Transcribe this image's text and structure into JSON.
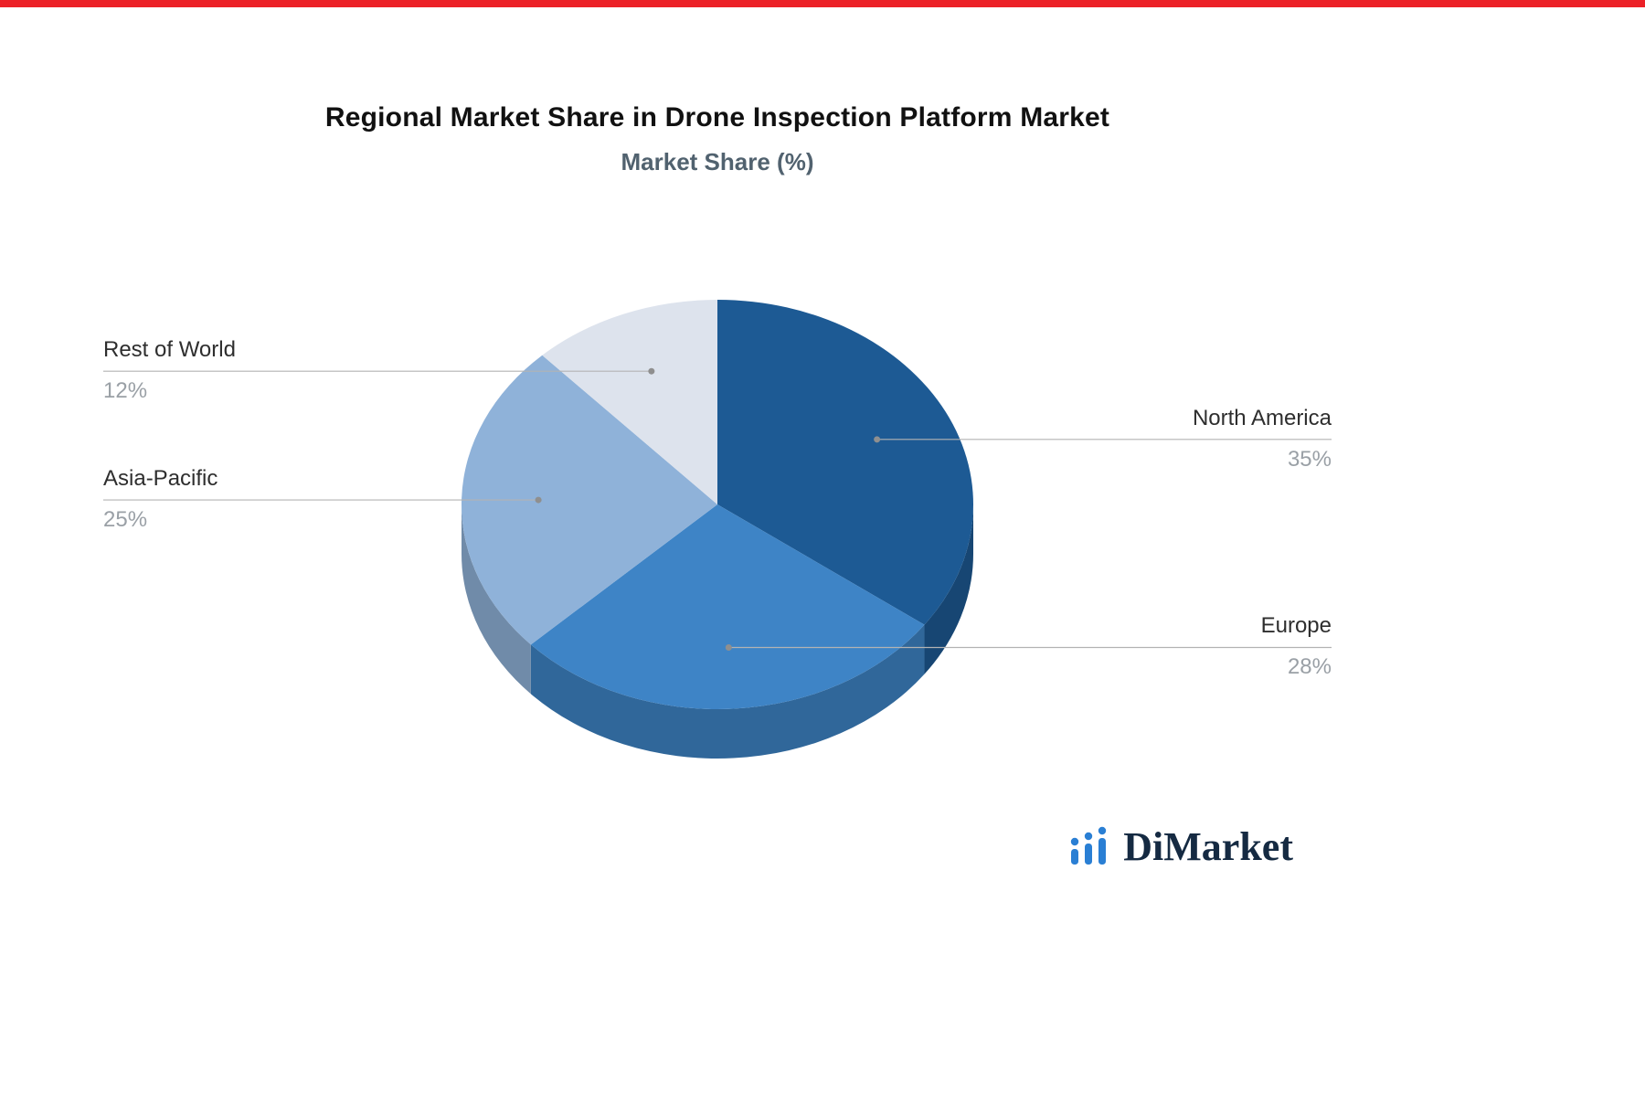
{
  "page": {
    "top_bar_color": "#ec2127",
    "background_color": "#ffffff"
  },
  "header": {
    "title": "Regional Market Share in Drone Inspection Platform Market",
    "subtitle": "Market Share (%)"
  },
  "chart_data": {
    "type": "pie",
    "title": "Regional Market Share in Drone Inspection Platform Market",
    "subtitle": "Market Share (%)",
    "legend_position": "none",
    "style": "3d-pie-with-depth",
    "callout_line_color": "#b3b3b3",
    "callout_label_color": "#2e2e2e",
    "callout_value_color": "#9aa0a6",
    "slices": [
      {
        "label": "North America",
        "value": 35,
        "display": "35%",
        "color": "#1d5a94"
      },
      {
        "label": "Europe",
        "value": 28,
        "display": "28%",
        "color": "#3e84c6"
      },
      {
        "label": "Asia-Pacific",
        "value": 25,
        "display": "25%",
        "color": "#8fb2d9"
      },
      {
        "label": "Rest of World",
        "value": 12,
        "display": "12%",
        "color": "#dde3ed"
      }
    ],
    "start_angle_deg": 0,
    "direction": "clockwise"
  },
  "branding": {
    "logo_text": "DiMarket",
    "logo_color": "#2a7fd4"
  }
}
